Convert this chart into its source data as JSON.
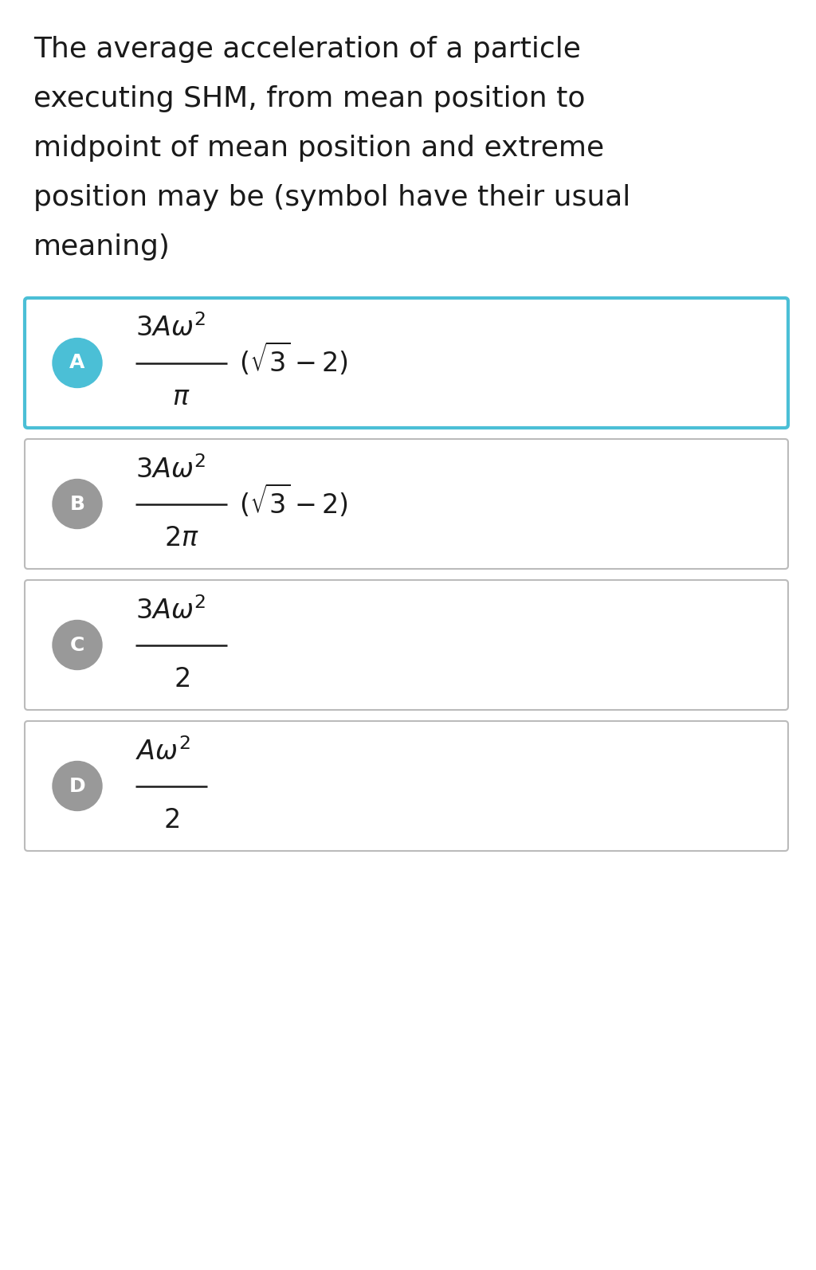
{
  "background_color": "#ffffff",
  "question_text_lines": [
    "The average acceleration of a particle",
    "executing SHM, from mean position to",
    "midpoint of mean position and extreme",
    "position may be (symbol have their usual",
    "meaning)"
  ],
  "question_fontsize": 26,
  "question_color": "#1a1a1a",
  "options": [
    {
      "label": "A",
      "label_bg": "#4BBFD6",
      "label_color": "#ffffff",
      "numer": "$3A\\omega^2$",
      "denom": "$\\pi$",
      "extra": "$(\\sqrt{3}-2)$",
      "border_color": "#4BBFD6",
      "border_lw": 3.0,
      "is_correct": true
    },
    {
      "label": "B",
      "label_bg": "#999999",
      "label_color": "#ffffff",
      "numer": "$3A\\omega^2$",
      "denom": "$2\\pi$",
      "extra": "$(\\sqrt{3}-2)$",
      "border_color": "#bbbbbb",
      "border_lw": 1.5,
      "is_correct": false
    },
    {
      "label": "C",
      "label_bg": "#999999",
      "label_color": "#ffffff",
      "numer": "$3A\\omega^2$",
      "denom": "$2$",
      "extra": "",
      "border_color": "#bbbbbb",
      "border_lw": 1.5,
      "is_correct": false
    },
    {
      "label": "D",
      "label_bg": "#999999",
      "label_color": "#ffffff",
      "numer": "$A\\omega^2$",
      "denom": "$2$",
      "extra": "",
      "border_color": "#bbbbbb",
      "border_lw": 1.5,
      "is_correct": false
    }
  ],
  "fig_width": 10.24,
  "fig_height": 15.94
}
